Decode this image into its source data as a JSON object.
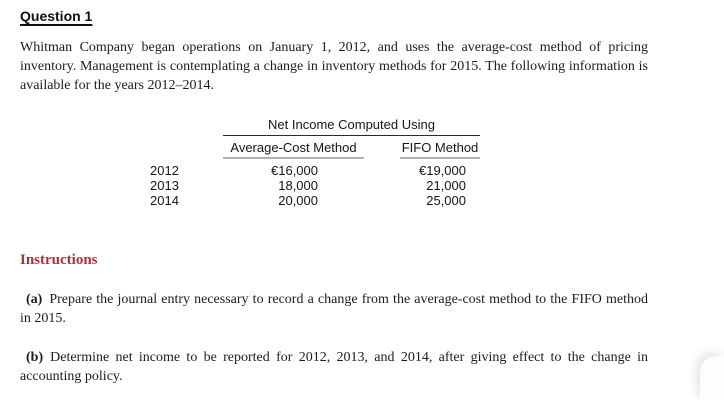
{
  "question": {
    "title": "Question 1",
    "paragraph": "Whitman Company began operations on January 1, 2012, and uses the average-cost method of pricing inventory. Management is contemplating a change in inventory methods for 2015. The following information is available for the years 2012–2014."
  },
  "table": {
    "title": "Net Income Computed Using",
    "columns": [
      "Average-Cost Method",
      "FIFO Method"
    ],
    "rows": [
      {
        "year": "2012",
        "avg": "€16,000",
        "fifo": "€19,000"
      },
      {
        "year": "2013",
        "avg": "18,000",
        "fifo": "21,000"
      },
      {
        "year": "2014",
        "avg": "20,000",
        "fifo": "25,000"
      }
    ]
  },
  "instructions": {
    "heading": "Instructions",
    "heading_color": "#A6333A",
    "items": [
      {
        "label": "(a)",
        "text": "Prepare the journal entry necessary to record a change from the average-cost method to the FIFO method in 2015."
      },
      {
        "label": "(b)",
        "text": "Determine net income to be reported for 2012, 2013, and 2014, after giving effect to the change in accounting policy."
      }
    ]
  }
}
